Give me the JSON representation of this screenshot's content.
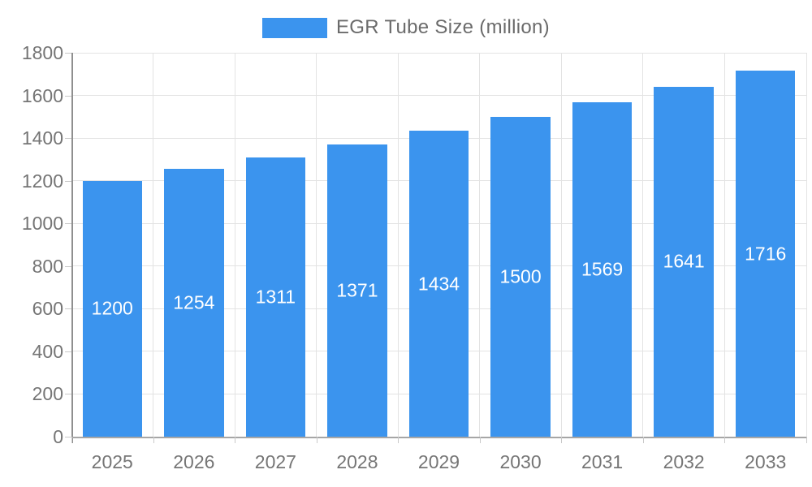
{
  "legend": {
    "label": "EGR Tube Size (million)",
    "swatch_color": "#3b94ee"
  },
  "chart_data": {
    "type": "bar",
    "title": "",
    "categories": [
      "2025",
      "2026",
      "2027",
      "2028",
      "2029",
      "2030",
      "2031",
      "2032",
      "2033"
    ],
    "series": [
      {
        "name": "EGR Tube Size (million)",
        "values": [
          1200,
          1254,
          1311,
          1371,
          1434,
          1500,
          1569,
          1641,
          1716
        ]
      }
    ],
    "xlabel": "",
    "ylabel": "",
    "ylim": [
      0,
      1800
    ],
    "ytick_step": 200,
    "ytick_labels": [
      "0",
      "200",
      "400",
      "600",
      "800",
      "1000",
      "1200",
      "1400",
      "1600",
      "1800"
    ],
    "bar_color": "#3b94ee",
    "value_label_color": "#ffffff",
    "value_label_position": "inside-center",
    "grid": "horizontal and vertical light gray",
    "legend_position": "top-center"
  }
}
